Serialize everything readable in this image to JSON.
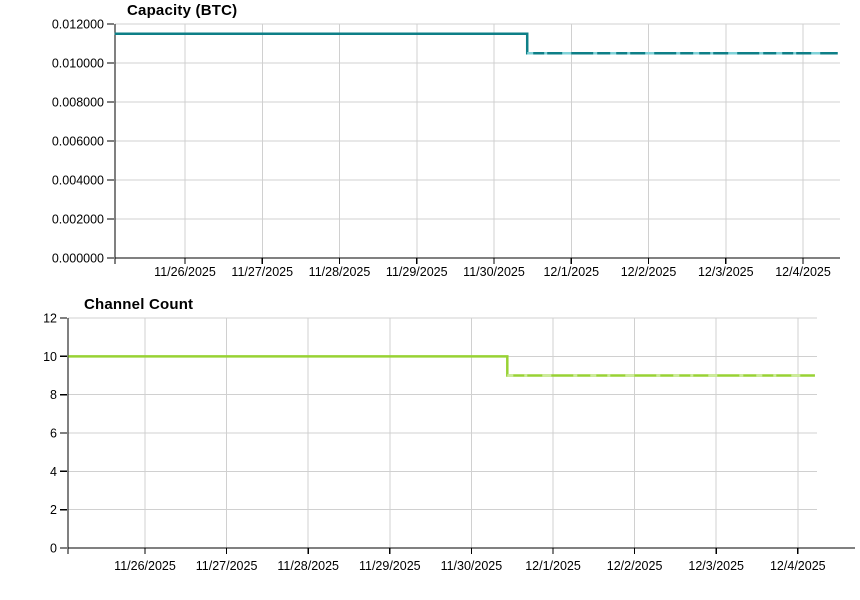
{
  "window": {
    "background": "#ffffff"
  },
  "colors": {
    "grid": "#d0d0d0",
    "axis": "#000000",
    "label": "#000000",
    "capacity_line": "#0e7f87",
    "capacity_line_light": "#7fd2d8",
    "channel_line": "#98d234",
    "channel_line_light": "#cdeb9a"
  },
  "chart_data": [
    {
      "type": "line",
      "title": "Capacity (BTC)",
      "xlabel": "",
      "ylabel": "",
      "grid": true,
      "legend": "none",
      "x_days_origin": "11/26/2025",
      "x_tick_values": [
        0,
        1,
        2,
        3,
        4,
        5,
        6,
        7,
        8
      ],
      "x_tick_labels": [
        "11/26/2025",
        "11/27/2025",
        "11/28/2025",
        "11/29/2025",
        "11/30/2025",
        "12/1/2025",
        "12/2/2025",
        "12/3/2025",
        "12/4/2025"
      ],
      "y_ticks": [
        {
          "value": 0,
          "label": "0.000000"
        },
        {
          "value": 0.002,
          "label": "0.002000"
        },
        {
          "value": 0.004,
          "label": "0.004000"
        },
        {
          "value": 0.006,
          "label": "0.006000"
        },
        {
          "value": 0.008,
          "label": "0.008000"
        },
        {
          "value": 0.01,
          "label": "0.010000"
        },
        {
          "value": 0.012,
          "label": "0.012000"
        }
      ],
      "ylim": [
        0,
        0.012
      ],
      "xlim": [
        -0.91,
        8.45
      ],
      "series": [
        {
          "name": "capacity_btc",
          "color": "#0e7f87",
          "highlight_color": "#7fd2d8",
          "step": true,
          "points": [
            [
              -0.91,
              0.0115
            ],
            [
              4.43,
              0.0115
            ],
            [
              4.43,
              0.0105
            ],
            [
              8.45,
              0.0105
            ]
          ]
        }
      ]
    },
    {
      "type": "line",
      "title": "Channel Count",
      "xlabel": "",
      "ylabel": "",
      "grid": true,
      "legend": "none",
      "x_days_origin": "11/26/2025",
      "x_tick_values": [
        0,
        1,
        2,
        3,
        4,
        5,
        6,
        7,
        8
      ],
      "x_tick_labels": [
        "11/26/2025",
        "11/27/2025",
        "11/28/2025",
        "11/29/2025",
        "11/30/2025",
        "12/1/2025",
        "12/2/2025",
        "12/3/2025",
        "12/4/2025"
      ],
      "y_ticks": [
        {
          "value": 0,
          "label": "0"
        },
        {
          "value": 2,
          "label": "2"
        },
        {
          "value": 4,
          "label": "4"
        },
        {
          "value": 6,
          "label": "6"
        },
        {
          "value": 8,
          "label": "8"
        },
        {
          "value": 10,
          "label": "10"
        },
        {
          "value": 12,
          "label": "12"
        }
      ],
      "ylim": [
        0,
        12
      ],
      "xlim": [
        -0.94,
        8.21
      ],
      "series": [
        {
          "name": "channel_count",
          "color": "#98d234",
          "highlight_color": "#cdeb9a",
          "step": true,
          "points": [
            [
              -0.94,
              10
            ],
            [
              4.44,
              10
            ],
            [
              4.44,
              9
            ],
            [
              8.21,
              9
            ]
          ]
        }
      ]
    }
  ]
}
